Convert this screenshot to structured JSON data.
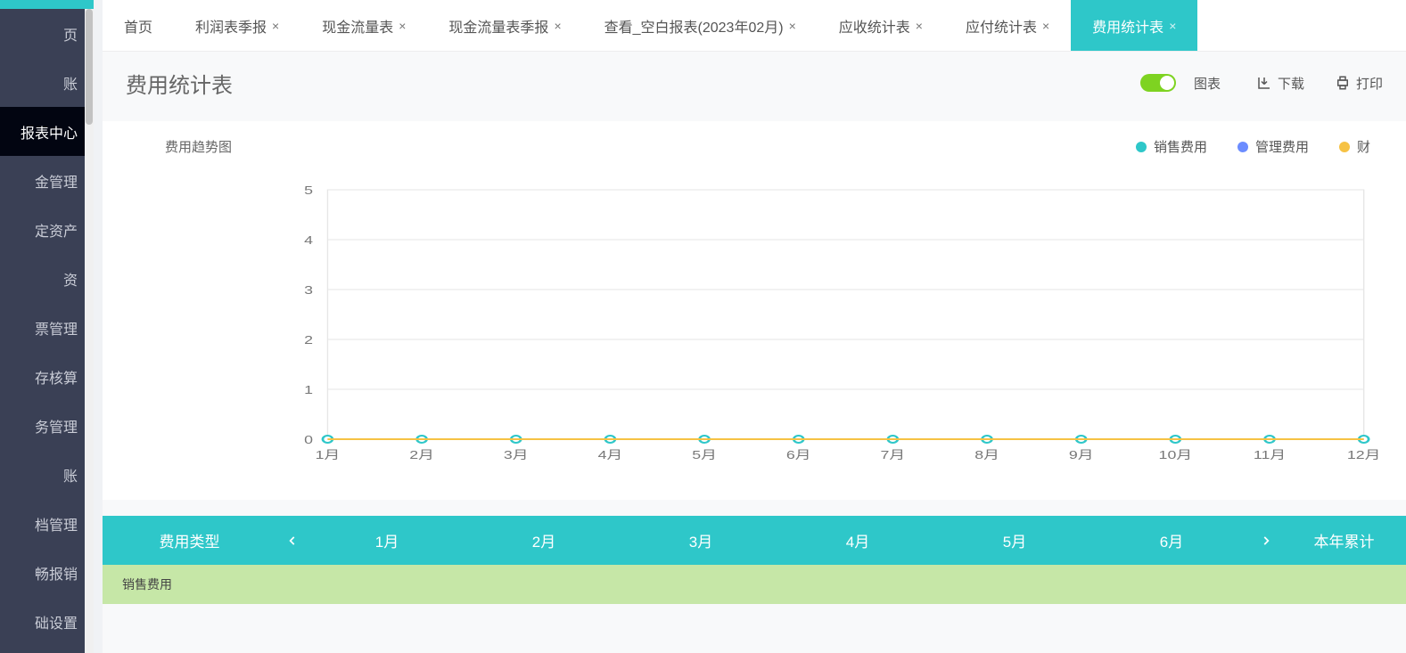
{
  "sidebar": {
    "items": [
      {
        "label": "页"
      },
      {
        "label": "账"
      },
      {
        "label": "报表中心",
        "active": true
      },
      {
        "label": "金管理"
      },
      {
        "label": "定资产"
      },
      {
        "label": "资"
      },
      {
        "label": "票管理"
      },
      {
        "label": "存核算"
      },
      {
        "label": "务管理"
      },
      {
        "label": "账"
      },
      {
        "label": "档管理"
      },
      {
        "label": "畅报销"
      },
      {
        "label": "础设置"
      }
    ]
  },
  "tabs": [
    {
      "label": "首页",
      "closable": false
    },
    {
      "label": "利润表季报",
      "closable": true
    },
    {
      "label": "现金流量表",
      "closable": true
    },
    {
      "label": "现金流量表季报",
      "closable": true
    },
    {
      "label": "查看_空白报表(2023年02月)",
      "closable": true
    },
    {
      "label": "应收统计表",
      "closable": true
    },
    {
      "label": "应付统计表",
      "closable": true
    },
    {
      "label": "费用统计表",
      "closable": true,
      "active": true
    }
  ],
  "header": {
    "title": "费用统计表",
    "toggle_label": "图表",
    "download": "下载",
    "print": "打印"
  },
  "chart": {
    "title": "费用趋势图",
    "type": "line",
    "categories": [
      "1月",
      "2月",
      "3月",
      "4月",
      "5月",
      "6月",
      "7月",
      "8月",
      "9月",
      "10月",
      "11月",
      "12月"
    ],
    "series": [
      {
        "name": "销售费用",
        "color": "#2ec7c9",
        "values": [
          0,
          0,
          0,
          0,
          0,
          0,
          0,
          0,
          0,
          0,
          0,
          0
        ]
      },
      {
        "name": "管理费用",
        "color": "#6b8cff",
        "values": [
          0,
          0,
          0,
          0,
          0,
          0,
          0,
          0,
          0,
          0,
          0,
          0
        ]
      },
      {
        "name": "财",
        "color": "#f6c244",
        "values": [
          0,
          0,
          0,
          0,
          0,
          0,
          0,
          0,
          0,
          0,
          0,
          0
        ]
      }
    ],
    "ylim": [
      0,
      5
    ],
    "ytick_step": 1,
    "grid_color": "#e6e6e6",
    "axis_color": "#888",
    "label_color": "#777",
    "label_fontsize": 13,
    "title_fontsize": 15,
    "background": "#ffffff",
    "marker_radius": 4,
    "line_width": 2
  },
  "table": {
    "type_header": "费用类型",
    "months": [
      "1月",
      "2月",
      "3月",
      "4月",
      "5月",
      "6月"
    ],
    "total_header": "本年累计",
    "rows": [
      {
        "type": "销售费用",
        "highlight": true,
        "cells": [
          "",
          "",
          "",
          "",
          "",
          ""
        ]
      }
    ],
    "header_bg": "#2ec7c9",
    "highlight_bg": "#c6e7a7"
  }
}
